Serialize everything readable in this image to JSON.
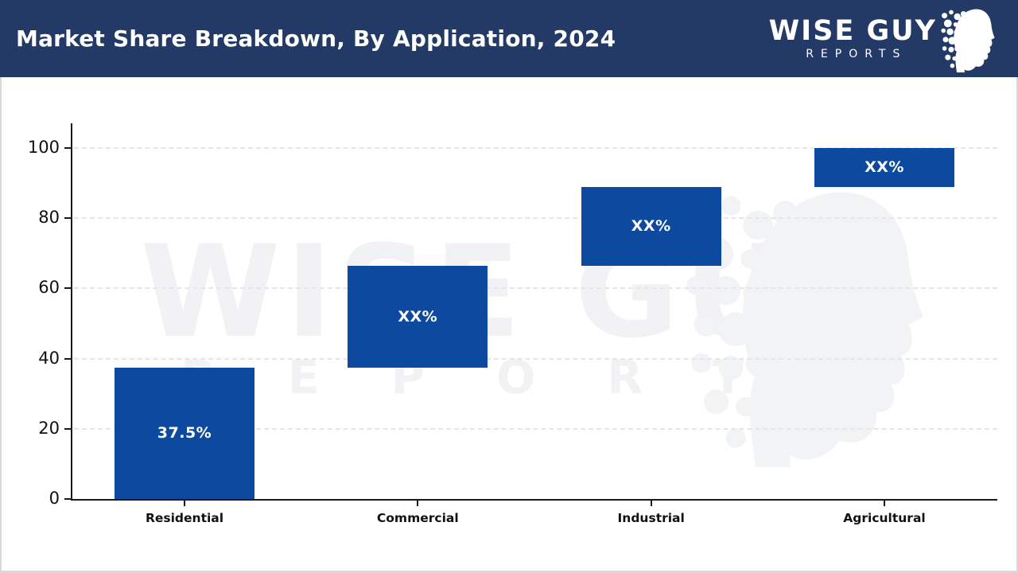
{
  "header": {
    "title": "Market Share Breakdown, By Application, 2024",
    "bg_color": "#233a66",
    "logo": {
      "wordmark": "WISE GUY",
      "subtext": "REPORTS"
    }
  },
  "watermark": {
    "wordmark": "WISE GUY",
    "subtext": "REPORTS"
  },
  "chart_data": {
    "type": "bar",
    "subtype": "floating-segment-waterfall",
    "title": "Market Share Breakdown, By Application, 2024",
    "categories": [
      "Residential",
      "Commercial",
      "Industrial",
      "Agricultural"
    ],
    "segments": [
      {
        "category": "Residential",
        "start": 0,
        "end": 37.5,
        "label": "37.5%"
      },
      {
        "category": "Commercial",
        "start": 37.5,
        "end": 66.5,
        "label": "XX%"
      },
      {
        "category": "Industrial",
        "start": 66.5,
        "end": 89,
        "label": "XX%"
      },
      {
        "category": "Agricultural",
        "start": 89,
        "end": 100,
        "label": "XX%"
      }
    ],
    "segment_sizes_pct": [
      37.5,
      29,
      22.5,
      11
    ],
    "xlabel": "",
    "ylabel": "",
    "ylim": [
      0,
      100
    ],
    "yticks": [
      0,
      20,
      40,
      60,
      80,
      100
    ],
    "grid": "horizontal-dashed",
    "legend": "none",
    "colors": {
      "bar": "#0d4a9f",
      "bar_label": "#ffffff",
      "axis": "#1a1a1a",
      "gridline": "#e6e6e6",
      "header_bg": "#233a66",
      "watermark": "#f2f2f4"
    }
  }
}
